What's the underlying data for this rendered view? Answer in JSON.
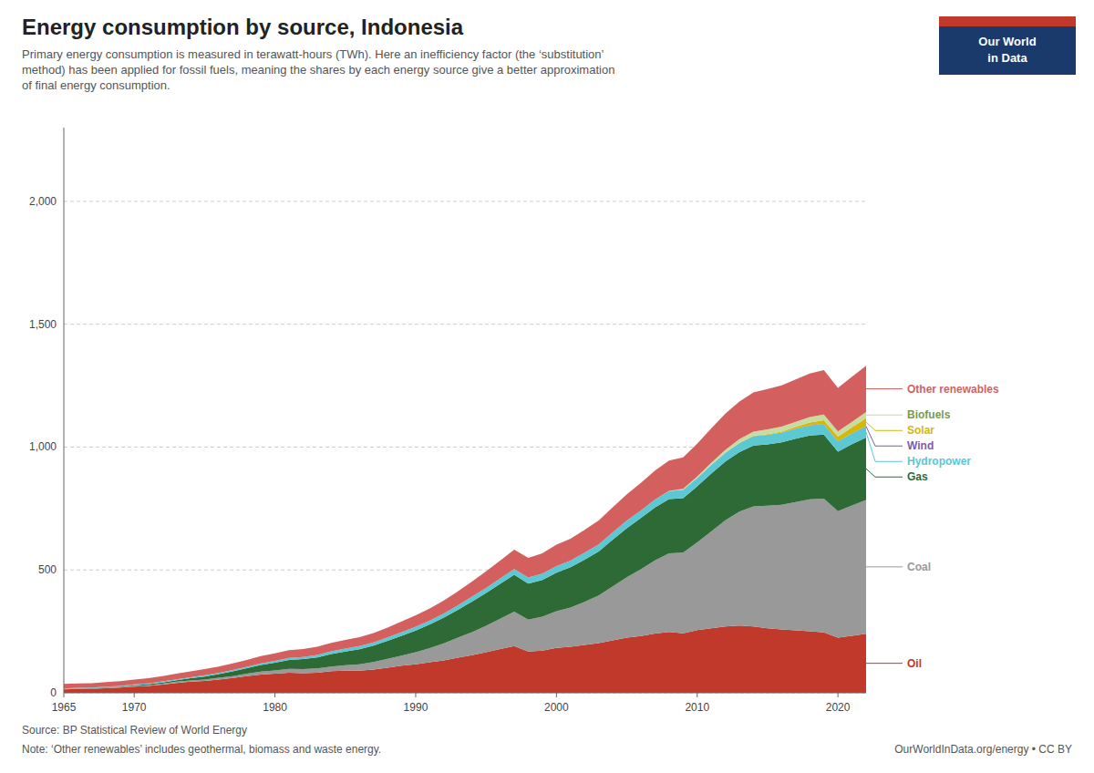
{
  "chart_data": {
    "type": "area",
    "stacked": true,
    "title": "Energy consumption by source, Indonesia",
    "subtitle": "Primary energy consumption is measured in terawatt-hours (TWh). Here an inefficiency factor (the ‘substitution’\nmethod) has been applied for fossil fuels, meaning the shares by each energy source give a better approximation\nof final energy consumption.",
    "annotations": [
      "Source: BP Statistical Review of World Energy",
      "Note: ‘Other renewables’ includes geothermal, biomass and waste energy.",
      "OurWorldInData.org/energy • CC BY",
      "Our World",
      "in Data"
    ],
    "x": [
      1965,
      1966,
      1967,
      1968,
      1969,
      1970,
      1971,
      1972,
      1973,
      1974,
      1975,
      1976,
      1977,
      1978,
      1979,
      1980,
      1981,
      1982,
      1983,
      1984,
      1985,
      1986,
      1987,
      1988,
      1989,
      1990,
      1991,
      1992,
      1993,
      1994,
      1995,
      1996,
      1997,
      1998,
      1999,
      2000,
      2001,
      2002,
      2003,
      2004,
      2005,
      2006,
      2007,
      2008,
      2009,
      2010,
      2011,
      2012,
      2013,
      2014,
      2015,
      2016,
      2017,
      2018,
      2019,
      2020,
      2021,
      2022
    ],
    "series": [
      {
        "name": "Oil",
        "color": "#c0392b",
        "values": [
          14,
          16,
          17,
          19,
          21,
          25,
          28,
          33,
          40,
          45,
          48,
          54,
          60,
          68,
          74,
          78,
          82,
          80,
          82,
          88,
          90,
          90,
          95,
          102,
          110,
          116,
          124,
          132,
          143,
          153,
          165,
          178,
          190,
          168,
          172,
          183,
          187,
          195,
          202,
          213,
          224,
          231,
          241,
          248,
          242,
          255,
          262,
          270,
          274,
          270,
          262,
          258,
          254,
          250,
          246,
          224,
          232,
          240
        ]
      },
      {
        "name": "Coal",
        "color": "#999999",
        "values": [
          1,
          1,
          1,
          2,
          2,
          3,
          3,
          4,
          5,
          5,
          6,
          7,
          8,
          10,
          12,
          13,
          15,
          16,
          17,
          19,
          22,
          26,
          30,
          36,
          41,
          49,
          58,
          69,
          81,
          94,
          108,
          123,
          140,
          130,
          138,
          149,
          160,
          175,
          194,
          220,
          246,
          272,
          298,
          320,
          328,
          357,
          395,
          432,
          463,
          489,
          499,
          507,
          522,
          537,
          544,
          515,
          530,
          545
        ]
      },
      {
        "name": "Gas",
        "color": "#2d6a35",
        "values": [
          1,
          1,
          1,
          2,
          2,
          3,
          4,
          5,
          6,
          9,
          12,
          15,
          19,
          22,
          27,
          31,
          37,
          41,
          45,
          51,
          56,
          61,
          67,
          73,
          81,
          88,
          96,
          105,
          114,
          124,
          133,
          142,
          150,
          146,
          149,
          157,
          164,
          172,
          179,
          190,
          200,
          208,
          215,
          220,
          222,
          228,
          235,
          239,
          242,
          247,
          250,
          254,
          258,
          260,
          261,
          242,
          250,
          254
        ]
      },
      {
        "name": "Hydropower",
        "color": "#5bc8d4",
        "values": [
          2,
          2,
          2,
          2,
          3,
          3,
          3,
          4,
          4,
          4,
          5,
          5,
          6,
          6,
          7,
          8,
          8,
          9,
          10,
          11,
          12,
          13,
          13,
          14,
          15,
          16,
          16,
          17,
          18,
          20,
          21,
          23,
          24,
          25,
          26,
          27,
          27,
          28,
          29,
          30,
          31,
          31,
          32,
          33,
          34,
          34,
          35,
          36,
          37,
          38,
          39,
          40,
          40,
          41,
          41,
          42,
          43,
          44
        ]
      },
      {
        "name": "Wind",
        "color": "#7b5ea7",
        "values": [
          0,
          0,
          0,
          0,
          0,
          0,
          0,
          0,
          0,
          0,
          0,
          0,
          0,
          0,
          0,
          0,
          0,
          0,
          0,
          0,
          0,
          0,
          0,
          0,
          0,
          0,
          0,
          0,
          0,
          0,
          0,
          0,
          0,
          0,
          0,
          0,
          0,
          0,
          0,
          0,
          0,
          0,
          0,
          0,
          0,
          0,
          0,
          0,
          0,
          0,
          0,
          0,
          1,
          1,
          1,
          1,
          1,
          2
        ]
      },
      {
        "name": "Solar",
        "color": "#d4b80a",
        "values": [
          0,
          0,
          0,
          0,
          0,
          0,
          0,
          0,
          0,
          0,
          0,
          0,
          0,
          0,
          0,
          0,
          0,
          0,
          0,
          0,
          0,
          0,
          0,
          0,
          0,
          0,
          0,
          0,
          0,
          0,
          0,
          0,
          0,
          0,
          0,
          0,
          0,
          0,
          0,
          0,
          0,
          0,
          0,
          0,
          0,
          0,
          0,
          0,
          1,
          2,
          3,
          4,
          7,
          11,
          16,
          18,
          24,
          33
        ]
      },
      {
        "name": "Biofuels",
        "color": "#c8dca0",
        "values": [
          0,
          0,
          0,
          0,
          0,
          0,
          0,
          0,
          0,
          0,
          0,
          0,
          0,
          0,
          0,
          0,
          0,
          0,
          0,
          0,
          0,
          0,
          0,
          0,
          0,
          0,
          0,
          0,
          0,
          0,
          0,
          0,
          0,
          0,
          0,
          0,
          0,
          0,
          0,
          0,
          0,
          0,
          0,
          1,
          4,
          6,
          9,
          12,
          15,
          17,
          19,
          20,
          21,
          22,
          23,
          22,
          23,
          25
        ]
      },
      {
        "name": "Other renewables",
        "color": "#d45f5f",
        "values": [
          18,
          18,
          18,
          19,
          19,
          20,
          21,
          22,
          23,
          24,
          25,
          26,
          27,
          28,
          29,
          30,
          31,
          32,
          33,
          34,
          35,
          36,
          38,
          40,
          43,
          46,
          49,
          53,
          57,
          62,
          67,
          72,
          78,
          80,
          83,
          87,
          89,
          93,
          97,
          102,
          107,
          112,
          118,
          123,
          128,
          134,
          140,
          147,
          153,
          159,
          164,
          168,
          172,
          177,
          181,
          177,
          183,
          188
        ]
      }
    ],
    "xlim": [
      1965,
      2022
    ],
    "xticks": [
      1965,
      1970,
      1980,
      1990,
      2000,
      2010,
      2020
    ],
    "ylim": [
      0,
      2300
    ],
    "yticks": [
      0,
      500,
      {
        "value": 1000,
        "label": "1,000"
      },
      {
        "value": 1500,
        "label": "1,500"
      },
      {
        "value": 2000,
        "label": "2,000"
      }
    ],
    "grid": true,
    "legend": "right"
  }
}
